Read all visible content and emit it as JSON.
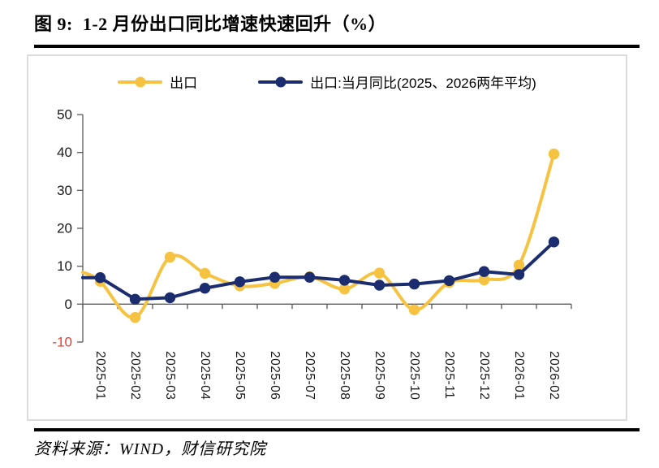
{
  "header": {
    "title": "图 9:  1-2 月份出口同比增速快速回升（%）"
  },
  "footer": {
    "source": "资料来源：WIND，财信研究院"
  },
  "chart_data": {
    "type": "line",
    "title": "1-2月份出口同比增速快速回升（%）",
    "categories": [
      "2025-01",
      "2025-02",
      "2025-03",
      "2025-04",
      "2025-05",
      "2025-06",
      "2025-07",
      "2025-08",
      "2025-09",
      "2025-10",
      "2025-11",
      "2025-12",
      "2026-01",
      "2026-02"
    ],
    "series": [
      {
        "name": "出口",
        "color": "#F5C242",
        "smooth": true,
        "edge_start": 8.4,
        "values": [
          6.0,
          -3.5,
          12.4,
          8.1,
          4.8,
          5.5,
          7.2,
          4.0,
          8.2,
          -1.5,
          5.7,
          6.4,
          10.3,
          39.6
        ]
      },
      {
        "name": "出口:当月同比(2025、2026两年平均)",
        "color": "#1B2C6F",
        "smooth": false,
        "edge_start": 7.0,
        "values": [
          7.0,
          1.3,
          1.7,
          4.2,
          5.9,
          7.1,
          7.1,
          6.3,
          5.0,
          5.3,
          6.2,
          8.6,
          7.8,
          16.4
        ]
      }
    ],
    "ylim": [
      -10,
      50
    ],
    "y_ticks": [
      50,
      40,
      30,
      20,
      10,
      0,
      -10
    ],
    "grid": false,
    "legend_position": "top",
    "colors": {
      "axis": "#595959",
      "tick_text": "#1a1a1a",
      "negative_tick_text": "#ED382F"
    }
  }
}
